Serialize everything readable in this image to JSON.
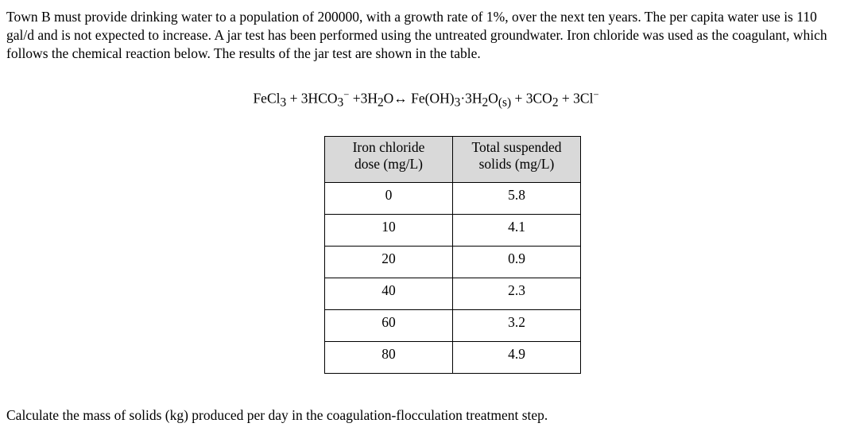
{
  "problem": {
    "intro": "Town B must provide drinking water to a population of 200000, with a growth rate of 1%, over the next ten years. The per capita water use is 110 gal/d and is not expected to increase. A jar test has been performed using the untreated groundwater.  Iron chloride was used as the coagulant, which follows the chemical reaction below. The results of the jar test are shown in the table.",
    "equation_segments": [
      {
        "t": "FeCl"
      },
      {
        "t": "3",
        "s": "sub"
      },
      {
        "t": " + 3HCO"
      },
      {
        "t": "3",
        "s": "sub"
      },
      {
        "t": "−",
        "s": "sup"
      },
      {
        "t": " +3H"
      },
      {
        "t": "2",
        "s": "sub"
      },
      {
        "t": "O↔ Fe(OH)"
      },
      {
        "t": "3",
        "s": "sub"
      },
      {
        "t": "·3H"
      },
      {
        "t": "2",
        "s": "sub"
      },
      {
        "t": "O"
      },
      {
        "t": "(s)",
        "s": "sub"
      },
      {
        "t": " + 3CO"
      },
      {
        "t": "2",
        "s": "sub"
      },
      {
        "t": " + 3Cl"
      },
      {
        "t": "−",
        "s": "sup"
      }
    ],
    "question": "Calculate the mass of solids (kg) produced per day in the coagulation-flocculation treatment step."
  },
  "table": {
    "headers": [
      [
        "Iron chloride",
        "dose (mg/L)"
      ],
      [
        "Total suspended",
        "solids (mg/L)"
      ]
    ],
    "rows": [
      [
        "0",
        "5.8"
      ],
      [
        "10",
        "4.1"
      ],
      [
        "20",
        "0.9"
      ],
      [
        "40",
        "2.3"
      ],
      [
        "60",
        "3.2"
      ],
      [
        "80",
        "4.9"
      ]
    ]
  },
  "colors": {
    "table_header_bg": "#d9d9d9",
    "table_border": "#000000"
  }
}
